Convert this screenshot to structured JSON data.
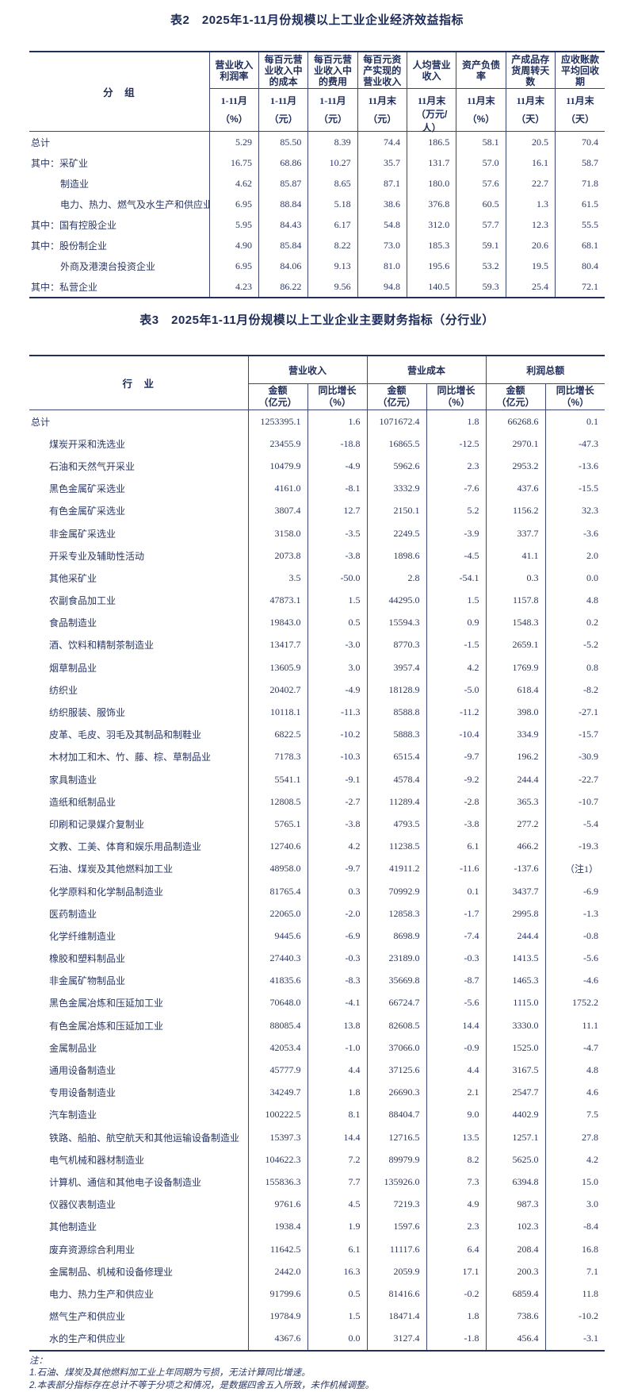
{
  "table2": {
    "title": "表2　2025年1-11月份规模以上工业企业经济效益指标",
    "col_group_label": "分　组",
    "columns": [
      {
        "name": "营业收入利润率",
        "period": "1-11月",
        "unit": "（%）"
      },
      {
        "name": "每百元营业收入中的成本",
        "period": "1-11月",
        "unit": "（元）"
      },
      {
        "name": "每百元营业收入中的费用",
        "period": "1-11月",
        "unit": "（元）"
      },
      {
        "name": "每百元资产实现的营业收入",
        "period": "11月末",
        "unit": "（元）"
      },
      {
        "name": "人均营业收入",
        "period": "11月末",
        "unit": "（万元/人）"
      },
      {
        "name": "资产负债率",
        "period": "11月末",
        "unit": "（%）"
      },
      {
        "name": "产成品存货周转天数",
        "period": "11月末",
        "unit": "（天）"
      },
      {
        "name": "应收账款平均回收期",
        "period": "11月末",
        "unit": "（天）"
      }
    ],
    "rows": [
      {
        "label": "总计",
        "indent": 0,
        "values": [
          "5.29",
          "85.50",
          "8.39",
          "74.4",
          "186.5",
          "58.1",
          "20.5",
          "70.4"
        ]
      },
      {
        "label": "其中：采矿业",
        "indent": 0,
        "values": [
          "16.75",
          "68.86",
          "10.27",
          "35.7",
          "131.7",
          "57.0",
          "16.1",
          "58.7"
        ]
      },
      {
        "label": "制造业",
        "indent": 1,
        "values": [
          "4.62",
          "85.87",
          "8.65",
          "87.1",
          "180.0",
          "57.6",
          "22.7",
          "71.8"
        ]
      },
      {
        "label": "电力、热力、燃气及水生产和供应业",
        "indent": 1,
        "values": [
          "6.95",
          "88.84",
          "5.18",
          "38.6",
          "376.8",
          "60.5",
          "1.3",
          "61.5"
        ]
      },
      {
        "label": "其中：国有控股企业",
        "indent": 0,
        "values": [
          "5.95",
          "84.43",
          "6.17",
          "54.8",
          "312.0",
          "57.7",
          "12.3",
          "55.5"
        ]
      },
      {
        "label": "其中：股份制企业",
        "indent": 0,
        "values": [
          "4.90",
          "85.84",
          "8.22",
          "73.0",
          "185.3",
          "59.1",
          "20.6",
          "68.1"
        ]
      },
      {
        "label": "外商及港澳台投资企业",
        "indent": 1,
        "values": [
          "6.95",
          "84.06",
          "9.13",
          "81.0",
          "195.6",
          "53.2",
          "19.5",
          "80.4"
        ]
      },
      {
        "label": "其中：私营企业",
        "indent": 0,
        "values": [
          "4.23",
          "86.22",
          "9.56",
          "94.8",
          "140.5",
          "59.3",
          "25.4",
          "72.1"
        ]
      }
    ]
  },
  "table3": {
    "title": "表3　2025年1-11月份规模以上工业企业主要财务指标（分行业）",
    "col_group_label": "行　业",
    "groups": [
      "营业收入",
      "营业成本",
      "利润总额"
    ],
    "sub_headers": [
      {
        "name": "金额",
        "unit": "（亿元）"
      },
      {
        "name": "同比增长",
        "unit": "（%）"
      },
      {
        "name": "金额",
        "unit": "（亿元）"
      },
      {
        "name": "同比增长",
        "unit": "（%）"
      },
      {
        "name": "金额",
        "unit": "（亿元）"
      },
      {
        "name": "同比增长",
        "unit": "（%）"
      }
    ],
    "rows": [
      {
        "label": "总计",
        "indent": 0,
        "values": [
          "1253395.1",
          "1.6",
          "1071672.4",
          "1.8",
          "66268.6",
          "0.1"
        ]
      },
      {
        "label": "煤炭开采和洗选业",
        "indent": 1,
        "values": [
          "23455.9",
          "-18.8",
          "16865.5",
          "-12.5",
          "2970.1",
          "-47.3"
        ]
      },
      {
        "label": "石油和天然气开采业",
        "indent": 1,
        "values": [
          "10479.9",
          "-4.9",
          "5962.6",
          "2.3",
          "2953.2",
          "-13.6"
        ]
      },
      {
        "label": "黑色金属矿采选业",
        "indent": 1,
        "values": [
          "4161.0",
          "-8.1",
          "3332.9",
          "-7.6",
          "437.6",
          "-15.5"
        ]
      },
      {
        "label": "有色金属矿采选业",
        "indent": 1,
        "values": [
          "3807.4",
          "12.7",
          "2150.1",
          "5.2",
          "1156.2",
          "32.3"
        ]
      },
      {
        "label": "非金属矿采选业",
        "indent": 1,
        "values": [
          "3158.0",
          "-3.5",
          "2249.5",
          "-3.9",
          "337.7",
          "-3.6"
        ]
      },
      {
        "label": "开采专业及辅助性活动",
        "indent": 1,
        "values": [
          "2073.8",
          "-3.8",
          "1898.6",
          "-4.5",
          "41.1",
          "2.0"
        ]
      },
      {
        "label": "其他采矿业",
        "indent": 1,
        "values": [
          "3.5",
          "-50.0",
          "2.8",
          "-54.1",
          "0.3",
          "0.0"
        ]
      },
      {
        "label": "农副食品加工业",
        "indent": 1,
        "values": [
          "47873.1",
          "1.5",
          "44295.0",
          "1.5",
          "1157.8",
          "4.8"
        ]
      },
      {
        "label": "食品制造业",
        "indent": 1,
        "values": [
          "19843.0",
          "0.5",
          "15594.3",
          "0.9",
          "1548.3",
          "0.2"
        ]
      },
      {
        "label": "酒、饮料和精制茶制造业",
        "indent": 1,
        "values": [
          "13417.7",
          "-3.0",
          "8770.3",
          "-1.5",
          "2659.1",
          "-5.2"
        ]
      },
      {
        "label": "烟草制品业",
        "indent": 1,
        "values": [
          "13605.9",
          "3.0",
          "3957.4",
          "4.2",
          "1769.9",
          "0.8"
        ]
      },
      {
        "label": "纺织业",
        "indent": 1,
        "values": [
          "20402.7",
          "-4.9",
          "18128.9",
          "-5.0",
          "618.4",
          "-8.2"
        ]
      },
      {
        "label": "纺织服装、服饰业",
        "indent": 1,
        "values": [
          "10118.1",
          "-11.3",
          "8588.8",
          "-11.2",
          "398.0",
          "-27.1"
        ]
      },
      {
        "label": "皮革、毛皮、羽毛及其制品和制鞋业",
        "indent": 1,
        "values": [
          "6822.5",
          "-10.2",
          "5888.3",
          "-10.4",
          "334.9",
          "-15.7"
        ]
      },
      {
        "label": "木材加工和木、竹、藤、棕、草制品业",
        "indent": 1,
        "values": [
          "7178.3",
          "-10.3",
          "6515.4",
          "-9.7",
          "196.2",
          "-30.9"
        ]
      },
      {
        "label": "家具制造业",
        "indent": 1,
        "values": [
          "5541.1",
          "-9.1",
          "4578.4",
          "-9.2",
          "244.4",
          "-22.7"
        ]
      },
      {
        "label": "造纸和纸制品业",
        "indent": 1,
        "values": [
          "12808.5",
          "-2.7",
          "11289.4",
          "-2.8",
          "365.3",
          "-10.7"
        ]
      },
      {
        "label": "印刷和记录媒介复制业",
        "indent": 1,
        "values": [
          "5765.1",
          "-3.8",
          "4793.5",
          "-3.8",
          "277.2",
          "-5.4"
        ]
      },
      {
        "label": "文教、工美、体育和娱乐用品制造业",
        "indent": 1,
        "values": [
          "12740.6",
          "4.2",
          "11238.5",
          "6.1",
          "466.2",
          "-19.3"
        ]
      },
      {
        "label": "石油、煤炭及其他燃料加工业",
        "indent": 1,
        "values": [
          "48958.0",
          "-9.7",
          "41911.2",
          "-11.6",
          "-137.6",
          "（注1）"
        ]
      },
      {
        "label": "化学原料和化学制品制造业",
        "indent": 1,
        "values": [
          "81765.4",
          "0.3",
          "70992.9",
          "0.1",
          "3437.7",
          "-6.9"
        ]
      },
      {
        "label": "医药制造业",
        "indent": 1,
        "values": [
          "22065.0",
          "-2.0",
          "12858.3",
          "-1.7",
          "2995.8",
          "-1.3"
        ]
      },
      {
        "label": "化学纤维制造业",
        "indent": 1,
        "values": [
          "9445.6",
          "-6.9",
          "8698.9",
          "-7.4",
          "244.4",
          "-0.8"
        ]
      },
      {
        "label": "橡胶和塑料制品业",
        "indent": 1,
        "values": [
          "27440.3",
          "-0.3",
          "23189.0",
          "-0.3",
          "1413.5",
          "-5.6"
        ]
      },
      {
        "label": "非金属矿物制品业",
        "indent": 1,
        "values": [
          "41835.6",
          "-8.3",
          "35669.8",
          "-8.7",
          "1465.3",
          "-4.6"
        ]
      },
      {
        "label": "黑色金属冶炼和压延加工业",
        "indent": 1,
        "values": [
          "70648.0",
          "-4.1",
          "66724.7",
          "-5.6",
          "1115.0",
          "1752.2"
        ]
      },
      {
        "label": "有色金属冶炼和压延加工业",
        "indent": 1,
        "values": [
          "88085.4",
          "13.8",
          "82608.5",
          "14.4",
          "3330.0",
          "11.1"
        ]
      },
      {
        "label": "金属制品业",
        "indent": 1,
        "values": [
          "42053.4",
          "-1.0",
          "37066.0",
          "-0.9",
          "1525.0",
          "-4.7"
        ]
      },
      {
        "label": "通用设备制造业",
        "indent": 1,
        "values": [
          "45777.9",
          "4.4",
          "37125.6",
          "4.4",
          "3167.5",
          "4.8"
        ]
      },
      {
        "label": "专用设备制造业",
        "indent": 1,
        "values": [
          "34249.7",
          "1.8",
          "26690.3",
          "2.1",
          "2547.7",
          "4.6"
        ]
      },
      {
        "label": "汽车制造业",
        "indent": 1,
        "values": [
          "100222.5",
          "8.1",
          "88404.7",
          "9.0",
          "4402.9",
          "7.5"
        ]
      },
      {
        "label": "铁路、船舶、航空航天和其他运输设备制造业",
        "indent": 1,
        "values": [
          "15397.3",
          "14.4",
          "12716.5",
          "13.5",
          "1257.1",
          "27.8"
        ]
      },
      {
        "label": "电气机械和器材制造业",
        "indent": 1,
        "values": [
          "104622.3",
          "7.2",
          "89979.9",
          "8.2",
          "5625.0",
          "4.2"
        ]
      },
      {
        "label": "计算机、通信和其他电子设备制造业",
        "indent": 1,
        "values": [
          "155836.3",
          "7.7",
          "135926.0",
          "7.3",
          "6394.8",
          "15.0"
        ]
      },
      {
        "label": "仪器仪表制造业",
        "indent": 1,
        "values": [
          "9761.6",
          "4.5",
          "7219.3",
          "4.9",
          "987.3",
          "3.0"
        ]
      },
      {
        "label": "其他制造业",
        "indent": 1,
        "values": [
          "1938.4",
          "1.9",
          "1597.6",
          "2.3",
          "102.3",
          "-8.4"
        ]
      },
      {
        "label": "废弃资源综合利用业",
        "indent": 1,
        "values": [
          "11642.5",
          "6.1",
          "11117.6",
          "6.4",
          "208.4",
          "16.8"
        ]
      },
      {
        "label": "金属制品、机械和设备修理业",
        "indent": 1,
        "values": [
          "2442.0",
          "16.3",
          "2059.9",
          "17.1",
          "200.3",
          "7.1"
        ]
      },
      {
        "label": "电力、热力生产和供应业",
        "indent": 1,
        "values": [
          "91799.6",
          "0.5",
          "81416.6",
          "-0.2",
          "6859.4",
          "11.8"
        ]
      },
      {
        "label": "燃气生产和供应业",
        "indent": 1,
        "values": [
          "19784.9",
          "1.5",
          "18471.4",
          "1.8",
          "738.6",
          "-10.2"
        ]
      },
      {
        "label": "水的生产和供应业",
        "indent": 1,
        "values": [
          "4367.6",
          "0.0",
          "3127.4",
          "-1.8",
          "456.4",
          "-3.1"
        ]
      }
    ]
  },
  "notes": {
    "title": "注：",
    "items": [
      "1.石油、煤炭及其他燃料加工业上年同期为亏损，无法计算同比增速。",
      "2.本表部分指标存在总计不等于分项之和情况，是数据四舍五入所致，未作机械调整。"
    ]
  }
}
